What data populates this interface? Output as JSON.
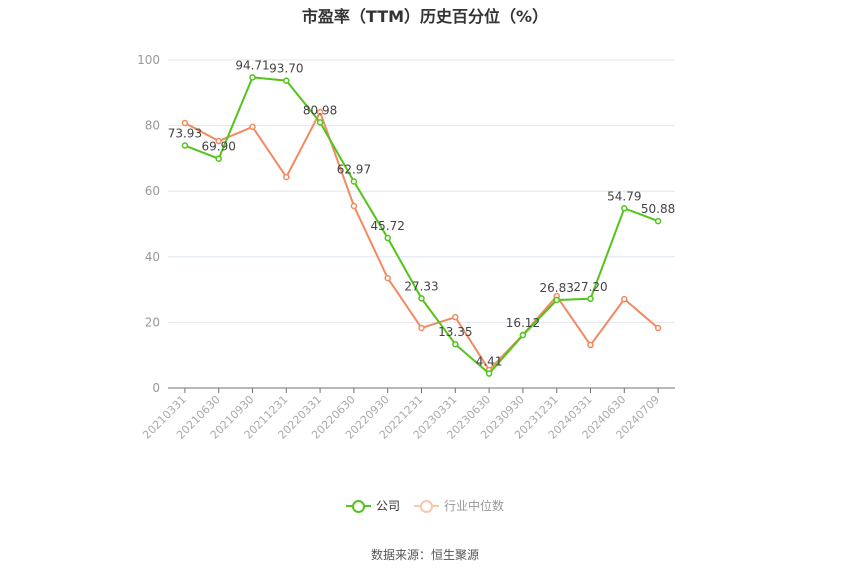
{
  "title": "市盈率（TTM）历史百分位（%）",
  "legend": [
    {
      "label": "公司",
      "color": "#52c41a"
    },
    {
      "label": "行业中位数",
      "color": "#f4895f"
    }
  ],
  "source": "数据来源：恒生聚源",
  "chart_data": {
    "type": "line",
    "title": "市盈率（TTM）历史百分位（%）",
    "xlabel": "",
    "ylabel": "",
    "ylim": [
      0,
      100
    ],
    "yticks": [
      0,
      20,
      40,
      60,
      80,
      100
    ],
    "grid": true,
    "legend_position": "bottom",
    "categories": [
      "20210331",
      "20210630",
      "20210930",
      "20211231",
      "20220331",
      "20220630",
      "20220930",
      "20221231",
      "20230331",
      "20230630",
      "20230930",
      "20231231",
      "20240331",
      "20240630",
      "20240709"
    ],
    "series": [
      {
        "name": "公司",
        "color": "#52c41a",
        "labeled": true,
        "values": [
          73.93,
          69.9,
          94.71,
          93.7,
          80.98,
          62.97,
          45.72,
          27.33,
          13.35,
          4.41,
          16.12,
          26.83,
          27.2,
          54.79,
          50.88
        ]
      },
      {
        "name": "行业中位数",
        "color": "#f4895f",
        "labeled": false,
        "values": [
          80.8,
          75.3,
          79.6,
          64.3,
          84.1,
          55.5,
          33.5,
          18.3,
          21.6,
          5.5,
          16.2,
          28.0,
          13.1,
          27.1,
          18.3
        ]
      }
    ]
  }
}
